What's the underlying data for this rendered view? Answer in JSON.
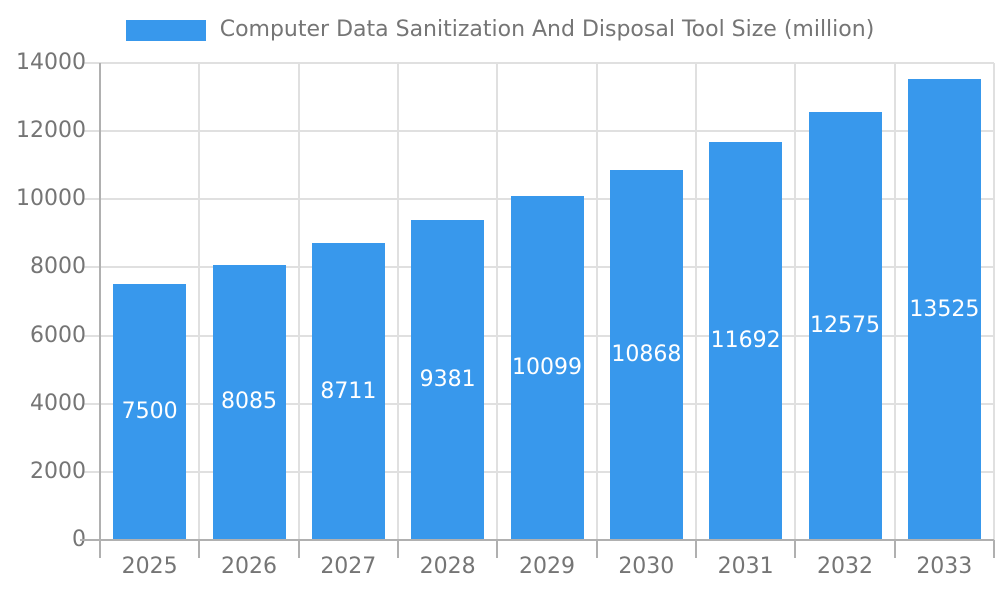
{
  "chart_data": {
    "type": "bar",
    "title": "Computer Data Sanitization And Disposal Tool Size (million)",
    "categories": [
      "2025",
      "2026",
      "2027",
      "2028",
      "2029",
      "2030",
      "2031",
      "2032",
      "2033"
    ],
    "series": [
      {
        "name": "Computer Data Sanitization And Disposal Tool Size (million)",
        "values": [
          7500,
          8085,
          8711,
          9381,
          10099,
          10868,
          11692,
          12575,
          13525
        ]
      }
    ],
    "xlabel": "",
    "ylabel": "",
    "ylim": [
      0,
      14000
    ],
    "yticks": [
      0,
      2000,
      4000,
      6000,
      8000,
      10000,
      12000,
      14000
    ],
    "grid": true,
    "legend_position": "top-center",
    "value_labels": "inside-center",
    "colors": {
      "bar": "#3898ec",
      "value_label": "#ffffff",
      "axis_text": "#757575",
      "grid": "#e0e0e0",
      "axis_line": "#b0b0b0",
      "background": "#ffffff"
    }
  }
}
